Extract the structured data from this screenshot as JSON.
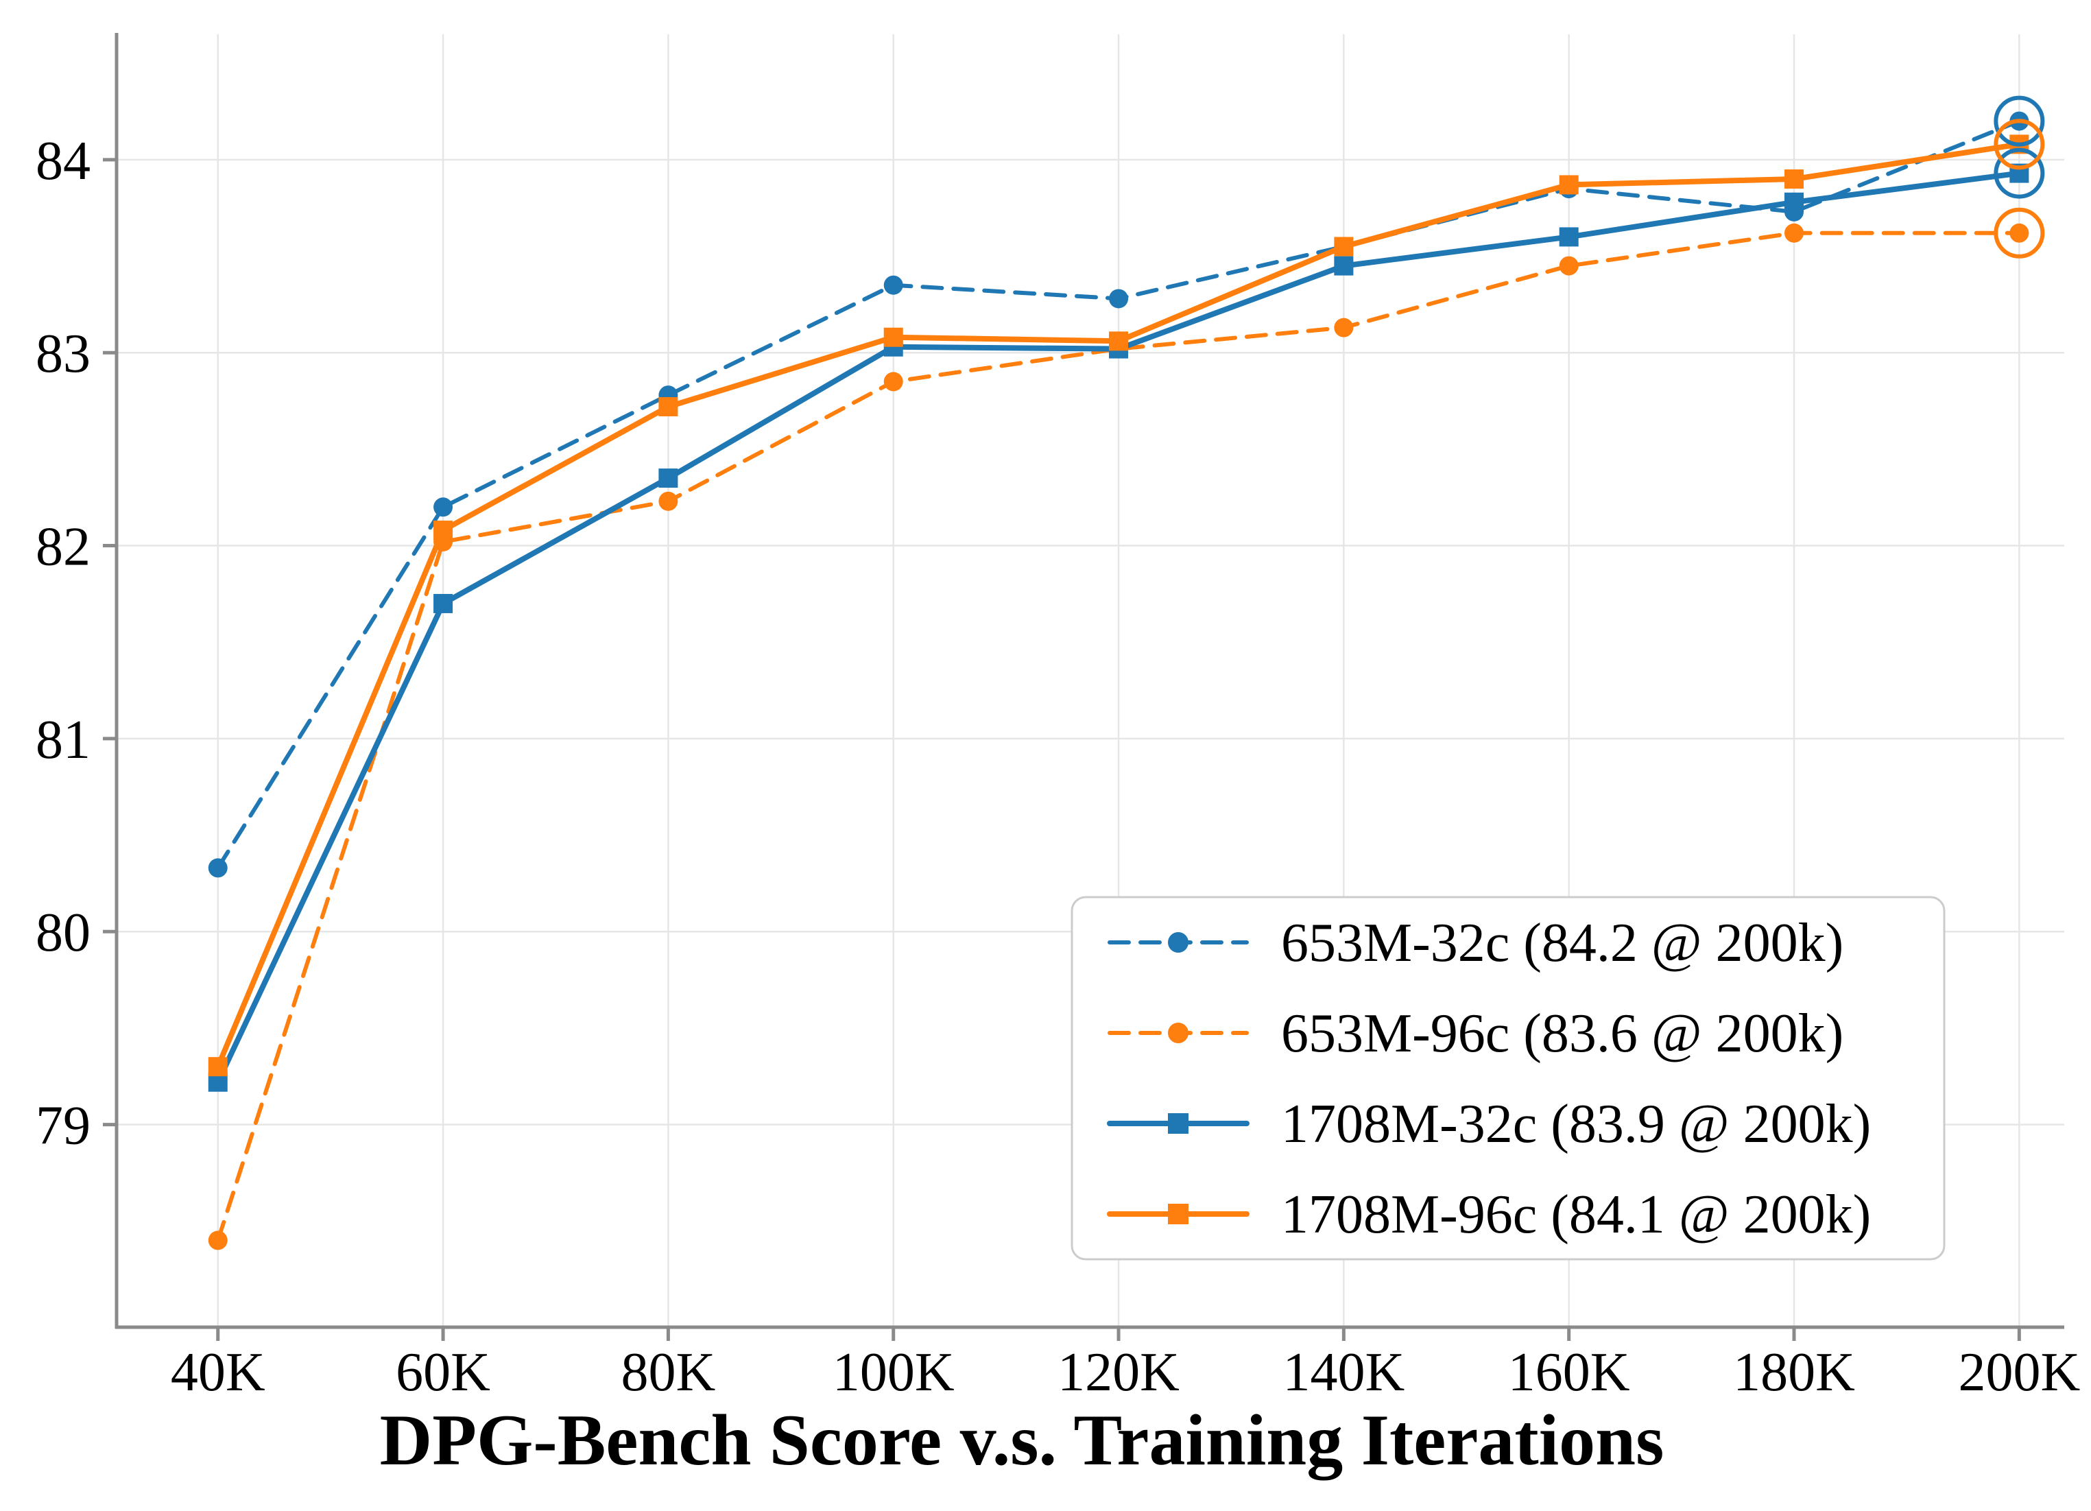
{
  "chart_data": {
    "type": "line",
    "title": "DPG-Bench Score v.s. Training Iterations",
    "xlabel": "",
    "ylabel": "",
    "x_tick_labels": [
      "40K",
      "60K",
      "80K",
      "100K",
      "120K",
      "140K",
      "160K",
      "180K",
      "200K"
    ],
    "x_values": [
      40,
      60,
      80,
      100,
      120,
      140,
      160,
      180,
      200
    ],
    "y_ticks": [
      79,
      80,
      81,
      82,
      83,
      84
    ],
    "xlim": [
      31,
      204
    ],
    "ylim": [
      77.95,
      84.65
    ],
    "grid": true,
    "legend_position": "lower right",
    "series": [
      {
        "name": "653M-32c (84.2 @ 200k)",
        "color": "#1f77b4",
        "line_style": "dashed",
        "marker": "circle",
        "values": [
          80.33,
          82.2,
          82.78,
          83.35,
          83.28,
          83.55,
          83.85,
          83.73,
          84.2
        ],
        "endpoint_highlight": true
      },
      {
        "name": "653M-96c (83.6 @ 200k)",
        "color": "#ff7f0e",
        "line_style": "dashed",
        "marker": "circle",
        "values": [
          78.4,
          82.02,
          82.23,
          82.85,
          83.02,
          83.13,
          83.45,
          83.62,
          83.62
        ],
        "endpoint_highlight": true
      },
      {
        "name": "1708M-32c (83.9 @ 200k)",
        "color": "#1f77b4",
        "line_style": "solid",
        "marker": "square",
        "values": [
          79.22,
          81.7,
          82.35,
          83.03,
          83.02,
          83.45,
          83.6,
          83.78,
          83.93
        ],
        "endpoint_highlight": true
      },
      {
        "name": "1708M-96c (84.1 @ 200k)",
        "color": "#ff7f0e",
        "line_style": "solid",
        "marker": "square",
        "values": [
          79.3,
          82.08,
          82.72,
          83.08,
          83.06,
          83.55,
          83.87,
          83.9,
          84.08
        ],
        "endpoint_highlight": true
      }
    ],
    "style": {
      "blue": "#1f77b4",
      "orange": "#ff7f0e",
      "grid_color": "#e6e6e6",
      "spine_color": "#8a8a8a",
      "background": "#ffffff",
      "text_color": "#000000"
    }
  }
}
